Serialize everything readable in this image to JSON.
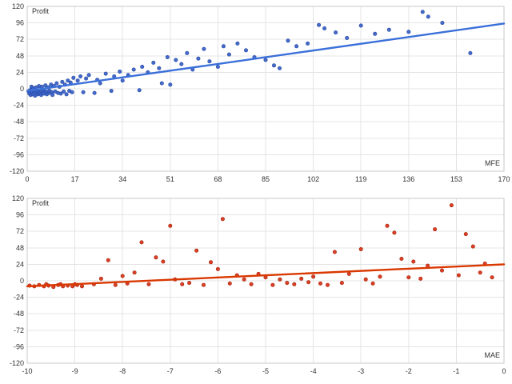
{
  "chart_data": [
    {
      "type": "scatter",
      "title": "",
      "ylabel": "Profit",
      "xlabel": "MFE",
      "xlim": [
        0,
        170
      ],
      "ylim": [
        -120,
        120
      ],
      "xticks": [
        0,
        17,
        34,
        51,
        68,
        85,
        102,
        119,
        136,
        153,
        170
      ],
      "yticks": [
        -120,
        -96,
        -72,
        -48,
        -24,
        0,
        24,
        48,
        72,
        96,
        120
      ],
      "point_color": "#3a62c8",
      "point_edge": "#26479e",
      "trend_color": "#3b6fd9",
      "grid_color": "#e4e4e4",
      "border_color": "#c9c9c9",
      "legend_position": "none",
      "grid": true,
      "trendline": {
        "x1": 0,
        "y1": -3,
        "x2": 170,
        "y2": 95
      },
      "points": [
        [
          0.5,
          -4
        ],
        [
          0.8,
          -7
        ],
        [
          1,
          -2
        ],
        [
          1.2,
          -9
        ],
        [
          1.5,
          3
        ],
        [
          1.8,
          -5
        ],
        [
          2,
          -8
        ],
        [
          2.2,
          1
        ],
        [
          2.5,
          -4
        ],
        [
          2.8,
          -10
        ],
        [
          3,
          -6
        ],
        [
          3.2,
          2
        ],
        [
          3.5,
          -3
        ],
        [
          3.8,
          -8
        ],
        [
          4,
          -5
        ],
        [
          4.2,
          4
        ],
        [
          4.5,
          -7
        ],
        [
          4.8,
          -2
        ],
        [
          5,
          -9
        ],
        [
          5.2,
          3
        ],
        [
          5.5,
          -5
        ],
        [
          5.8,
          -1
        ],
        [
          6,
          -7
        ],
        [
          6.5,
          5
        ],
        [
          6.8,
          -4
        ],
        [
          7,
          -8
        ],
        [
          7.5,
          2
        ],
        [
          7.8,
          -6
        ],
        [
          8,
          -3
        ],
        [
          8.5,
          6
        ],
        [
          8.8,
          -5
        ],
        [
          9,
          -9
        ],
        [
          9.5,
          4
        ],
        [
          10,
          -4
        ],
        [
          10.5,
          8
        ],
        [
          11,
          -6
        ],
        [
          11.5,
          3
        ],
        [
          12,
          -7
        ],
        [
          12.5,
          10
        ],
        [
          13,
          -4
        ],
        [
          13.5,
          6
        ],
        [
          14,
          -8
        ],
        [
          14.5,
          12
        ],
        [
          15,
          -3
        ],
        [
          15.5,
          9
        ],
        [
          16,
          -5
        ],
        [
          16.5,
          16
        ],
        [
          18,
          12
        ],
        [
          19,
          18
        ],
        [
          20,
          -5
        ],
        [
          21,
          15
        ],
        [
          22,
          20
        ],
        [
          24,
          -6
        ],
        [
          25,
          13
        ],
        [
          26,
          8
        ],
        [
          28,
          22
        ],
        [
          30,
          -3
        ],
        [
          31,
          18
        ],
        [
          33,
          25
        ],
        [
          34,
          12
        ],
        [
          36,
          20
        ],
        [
          38,
          28
        ],
        [
          40,
          -2
        ],
        [
          41,
          32
        ],
        [
          43,
          24
        ],
        [
          45,
          38
        ],
        [
          47,
          30
        ],
        [
          48,
          8
        ],
        [
          50,
          46
        ],
        [
          51,
          6
        ],
        [
          53,
          42
        ],
        [
          55,
          36
        ],
        [
          57,
          52
        ],
        [
          59,
          28
        ],
        [
          61,
          44
        ],
        [
          63,
          58
        ],
        [
          65,
          40
        ],
        [
          68,
          32
        ],
        [
          70,
          62
        ],
        [
          72,
          50
        ],
        [
          75,
          66
        ],
        [
          78,
          56
        ],
        [
          81,
          46
        ],
        [
          85,
          42
        ],
        [
          88,
          34
        ],
        [
          90,
          30
        ],
        [
          93,
          70
        ],
        [
          96,
          62
        ],
        [
          100,
          66
        ],
        [
          104,
          93
        ],
        [
          106,
          88
        ],
        [
          110,
          82
        ],
        [
          114,
          74
        ],
        [
          119,
          92
        ],
        [
          124,
          80
        ],
        [
          129,
          86
        ],
        [
          136,
          83
        ],
        [
          141,
          112
        ],
        [
          143,
          105
        ],
        [
          148,
          96
        ],
        [
          158,
          52
        ]
      ]
    },
    {
      "type": "scatter",
      "title": "",
      "ylabel": "Profit",
      "xlabel": "MAE",
      "xlim": [
        -10,
        0
      ],
      "ylim": [
        -120,
        120
      ],
      "xticks": [
        -10,
        -9,
        -8,
        -7,
        -6,
        -5,
        -4,
        -3,
        -2,
        -1,
        0
      ],
      "yticks": [
        -120,
        -96,
        -72,
        -48,
        -24,
        0,
        24,
        48,
        72,
        96,
        120
      ],
      "point_color": "#d7361a",
      "point_edge": "#a52008",
      "trend_color": "#d93800",
      "grid_color": "#e4e4e4",
      "border_color": "#c9c9c9",
      "legend_position": "none",
      "grid": true,
      "trendline": {
        "x1": -10,
        "y1": -8,
        "x2": 0,
        "y2": 24
      },
      "points": [
        [
          -9.95,
          -7
        ],
        [
          -9.85,
          -8
        ],
        [
          -9.75,
          -6
        ],
        [
          -9.65,
          -8
        ],
        [
          -9.55,
          -7
        ],
        [
          -9.45,
          -9
        ],
        [
          -9.35,
          -6
        ],
        [
          -9.25,
          -8
        ],
        [
          -9.15,
          -7
        ],
        [
          -9.05,
          -8
        ],
        [
          -8.95,
          -6
        ],
        [
          -8.85,
          -8
        ],
        [
          -9.6,
          -5
        ],
        [
          -9.3,
          -5
        ],
        [
          -9.0,
          -5
        ],
        [
          -8.6,
          -5
        ],
        [
          -8.45,
          3
        ],
        [
          -8.3,
          30
        ],
        [
          -8.15,
          -6
        ],
        [
          -8.0,
          7
        ],
        [
          -7.9,
          -4
        ],
        [
          -7.75,
          12
        ],
        [
          -7.6,
          56
        ],
        [
          -7.45,
          -5
        ],
        [
          -7.3,
          34
        ],
        [
          -7.15,
          28
        ],
        [
          -7.0,
          80
        ],
        [
          -6.9,
          2
        ],
        [
          -6.75,
          -5
        ],
        [
          -6.6,
          -3
        ],
        [
          -6.45,
          44
        ],
        [
          -6.3,
          -6
        ],
        [
          -6.15,
          27
        ],
        [
          -6.0,
          17
        ],
        [
          -5.9,
          90
        ],
        [
          -5.75,
          -4
        ],
        [
          -5.6,
          8
        ],
        [
          -5.45,
          2
        ],
        [
          -5.3,
          -5
        ],
        [
          -5.15,
          10
        ],
        [
          -5.0,
          5
        ],
        [
          -4.85,
          -6
        ],
        [
          -4.7,
          2
        ],
        [
          -4.55,
          -3
        ],
        [
          -4.4,
          -5
        ],
        [
          -4.25,
          3
        ],
        [
          -4.1,
          -2
        ],
        [
          -4.0,
          6
        ],
        [
          -3.85,
          -4
        ],
        [
          -3.7,
          -6
        ],
        [
          -3.55,
          42
        ],
        [
          -3.4,
          -3
        ],
        [
          -3.25,
          10
        ],
        [
          -3.0,
          46
        ],
        [
          -2.9,
          2
        ],
        [
          -2.75,
          -4
        ],
        [
          -2.6,
          6
        ],
        [
          -2.45,
          80
        ],
        [
          -2.3,
          70
        ],
        [
          -2.15,
          32
        ],
        [
          -2.0,
          5
        ],
        [
          -1.9,
          28
        ],
        [
          -1.75,
          3
        ],
        [
          -1.6,
          22
        ],
        [
          -1.45,
          75
        ],
        [
          -1.3,
          15
        ],
        [
          -1.1,
          110
        ],
        [
          -0.95,
          8
        ],
        [
          -0.8,
          68
        ],
        [
          -0.65,
          50
        ],
        [
          -0.5,
          12
        ],
        [
          -0.4,
          25
        ],
        [
          -0.25,
          5
        ]
      ]
    }
  ]
}
